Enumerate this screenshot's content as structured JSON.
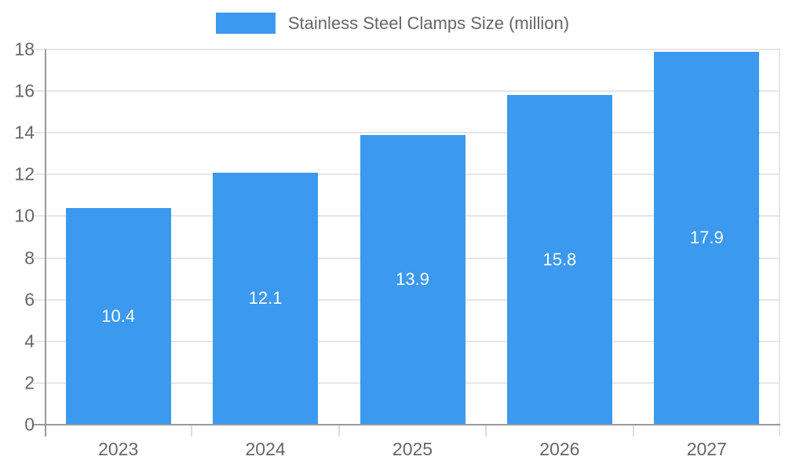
{
  "chart_data": {
    "type": "bar",
    "title": "",
    "legend": "Stainless Steel Clamps Size (million)",
    "legend_position": "top",
    "categories": [
      "2023",
      "2024",
      "2025",
      "2026",
      "2027"
    ],
    "series": [
      {
        "name": "Stainless Steel Clamps Size (million)",
        "values": [
          10.4,
          12.1,
          13.9,
          15.8,
          17.9
        ],
        "value_labels": [
          "10.4",
          "12.1",
          "13.9",
          "15.8",
          "17.9"
        ]
      }
    ],
    "xlabel": "",
    "ylabel": "",
    "ylim": [
      0,
      18
    ],
    "ytick_step": 2,
    "ytick_labels": [
      "0",
      "2",
      "4",
      "6",
      "8",
      "10",
      "12",
      "14",
      "16",
      "18"
    ],
    "grid": true,
    "colors": {
      "bar": "#3b99ef",
      "grid": "#e6e6e6",
      "axis": "#999999",
      "category_tick": "#dddddd",
      "tick_label": "#666666",
      "value_label": "#ffffff",
      "background": "#ffffff"
    }
  }
}
